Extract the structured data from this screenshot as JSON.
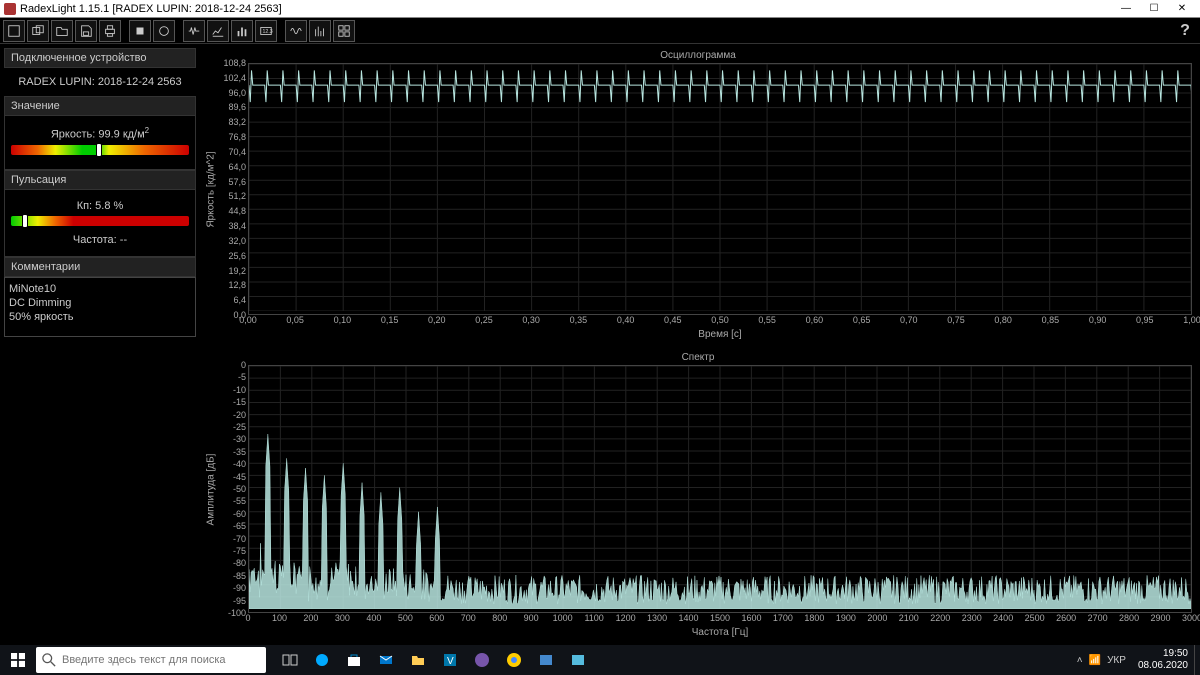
{
  "window": {
    "title": "RadexLight 1.15.1 [RADEX LUPIN: 2018-12-24 2563]",
    "min": "—",
    "max": "☐",
    "close": "✕"
  },
  "help": "?",
  "sidebar": {
    "device_header": "Подключенное устройство",
    "device_name": "RADEX LUPIN: 2018-12-24 2563",
    "value_header": "Значение",
    "brightness_label": "Яркость: 99.9 кд/м",
    "brightness_sup": "2",
    "brightness_marker_pct": 48,
    "pulsation_header": "Пульсация",
    "pulsation_label": "Кп: 5.8 %",
    "pulsation_marker_pct": 6,
    "frequency_label": "Частота: --",
    "comments_header": "Комментарии",
    "comment1": "MiNote10",
    "comment2": "DC Dimming",
    "comment3": "50% яркость"
  },
  "chart1": {
    "title": "Осциллограмма",
    "ylabel": "Яркость [кд/м^2]",
    "xlabel": "Время [с]",
    "ylim": [
      0,
      108.8
    ],
    "yticks": [
      0,
      6.4,
      12.8,
      19.2,
      25.6,
      32.0,
      38.4,
      44.8,
      51.2,
      57.6,
      64.0,
      70.4,
      76.8,
      83.2,
      89.6,
      96.0,
      102.4,
      108.8
    ],
    "xlim": [
      0,
      1.0
    ],
    "xticks": [
      0.0,
      0.05,
      0.1,
      0.15,
      0.2,
      0.25,
      0.3,
      0.35,
      0.4,
      0.45,
      0.5,
      0.55,
      0.6,
      0.65,
      0.7,
      0.75,
      0.8,
      0.85,
      0.9,
      0.95,
      1.0
    ],
    "line_color": "#b8e6e0",
    "background_color": "#000000",
    "grid_color": "#222222",
    "base_value": 99.5,
    "spike_low": 92,
    "spike_high": 106,
    "spike_count": 60
  },
  "chart2": {
    "title": "Спектр",
    "ylabel": "Амплитуда [дБ]",
    "xlabel": "Частота [Гц]",
    "ylim": [
      -100,
      0
    ],
    "yticks": [
      -100,
      -95,
      -90,
      -85,
      -80,
      -75,
      -70,
      -65,
      -60,
      -55,
      -50,
      -45,
      -40,
      -35,
      -30,
      -25,
      -20,
      -15,
      -10,
      -5,
      0
    ],
    "xlim": [
      0,
      3000
    ],
    "xticks": [
      0,
      100,
      200,
      300,
      400,
      500,
      600,
      700,
      800,
      900,
      1000,
      1100,
      1200,
      1300,
      1400,
      1500,
      1600,
      1700,
      1800,
      1900,
      2000,
      2100,
      2200,
      2300,
      2400,
      2500,
      2600,
      2700,
      2800,
      2900,
      3000
    ],
    "line_color": "#b8e6e0",
    "background_color": "#000000",
    "grid_color": "#222222",
    "floor": -92,
    "noise": 12,
    "peaks": [
      [
        60,
        -28
      ],
      [
        120,
        -38
      ],
      [
        180,
        -42
      ],
      [
        240,
        -45
      ],
      [
        300,
        -40
      ],
      [
        360,
        -48
      ],
      [
        420,
        -52
      ],
      [
        480,
        -50
      ],
      [
        540,
        -60
      ],
      [
        600,
        -58
      ]
    ]
  },
  "taskbar": {
    "search_placeholder": "Введите здесь текст для поиска",
    "lang": "УКР",
    "time": "19:50",
    "date": "08.06.2020"
  }
}
